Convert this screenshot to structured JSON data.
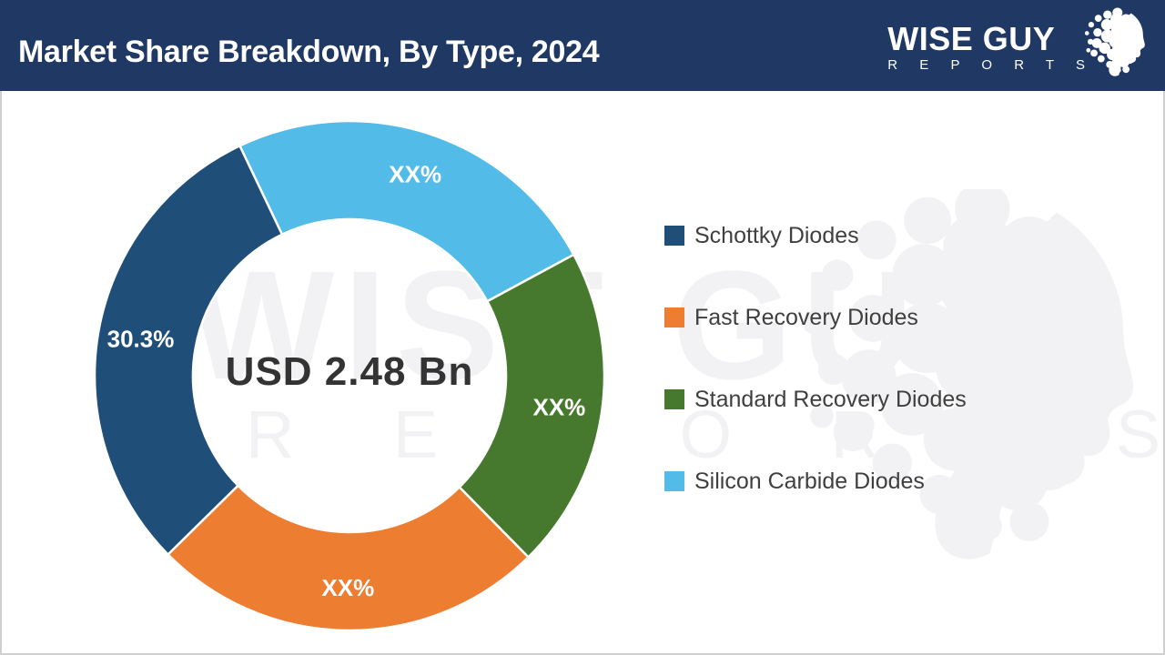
{
  "header": {
    "title": "Market Share Breakdown, By Type, 2024",
    "logo": {
      "line1": "WISE GUY",
      "line2": "R E P O R T S"
    }
  },
  "watermark": {
    "line1": "WISE GUY",
    "line2": "R E P O R T S"
  },
  "chart_data": {
    "type": "pie",
    "subtype": "donut",
    "title": "Market Share Breakdown, By Type, 2024",
    "center_label": "USD 2.48 Bn",
    "categories": [
      "Schottky Diodes",
      "Fast Recovery Diodes",
      "Standard Recovery Diodes",
      "Silicon Carbide Diodes"
    ],
    "values": [
      30.3,
      25.0,
      20.5,
      24.2
    ],
    "slice_labels": [
      "30.3%",
      "XX%",
      "XX%",
      "XX%"
    ],
    "colors": [
      "#1F4E79",
      "#ED7D31",
      "#46792E",
      "#52BBE7"
    ],
    "start_angle_deg": 115.5,
    "draw_order": [
      3,
      2,
      1,
      0
    ],
    "legend_position": "right",
    "units": "percent of market share"
  },
  "colors": {
    "header_bg": "#1F3864",
    "center_text": "#333333",
    "legend_text": "#3F3F3F",
    "watermark": "#F2F2F4",
    "border": "#CFCFCF"
  }
}
